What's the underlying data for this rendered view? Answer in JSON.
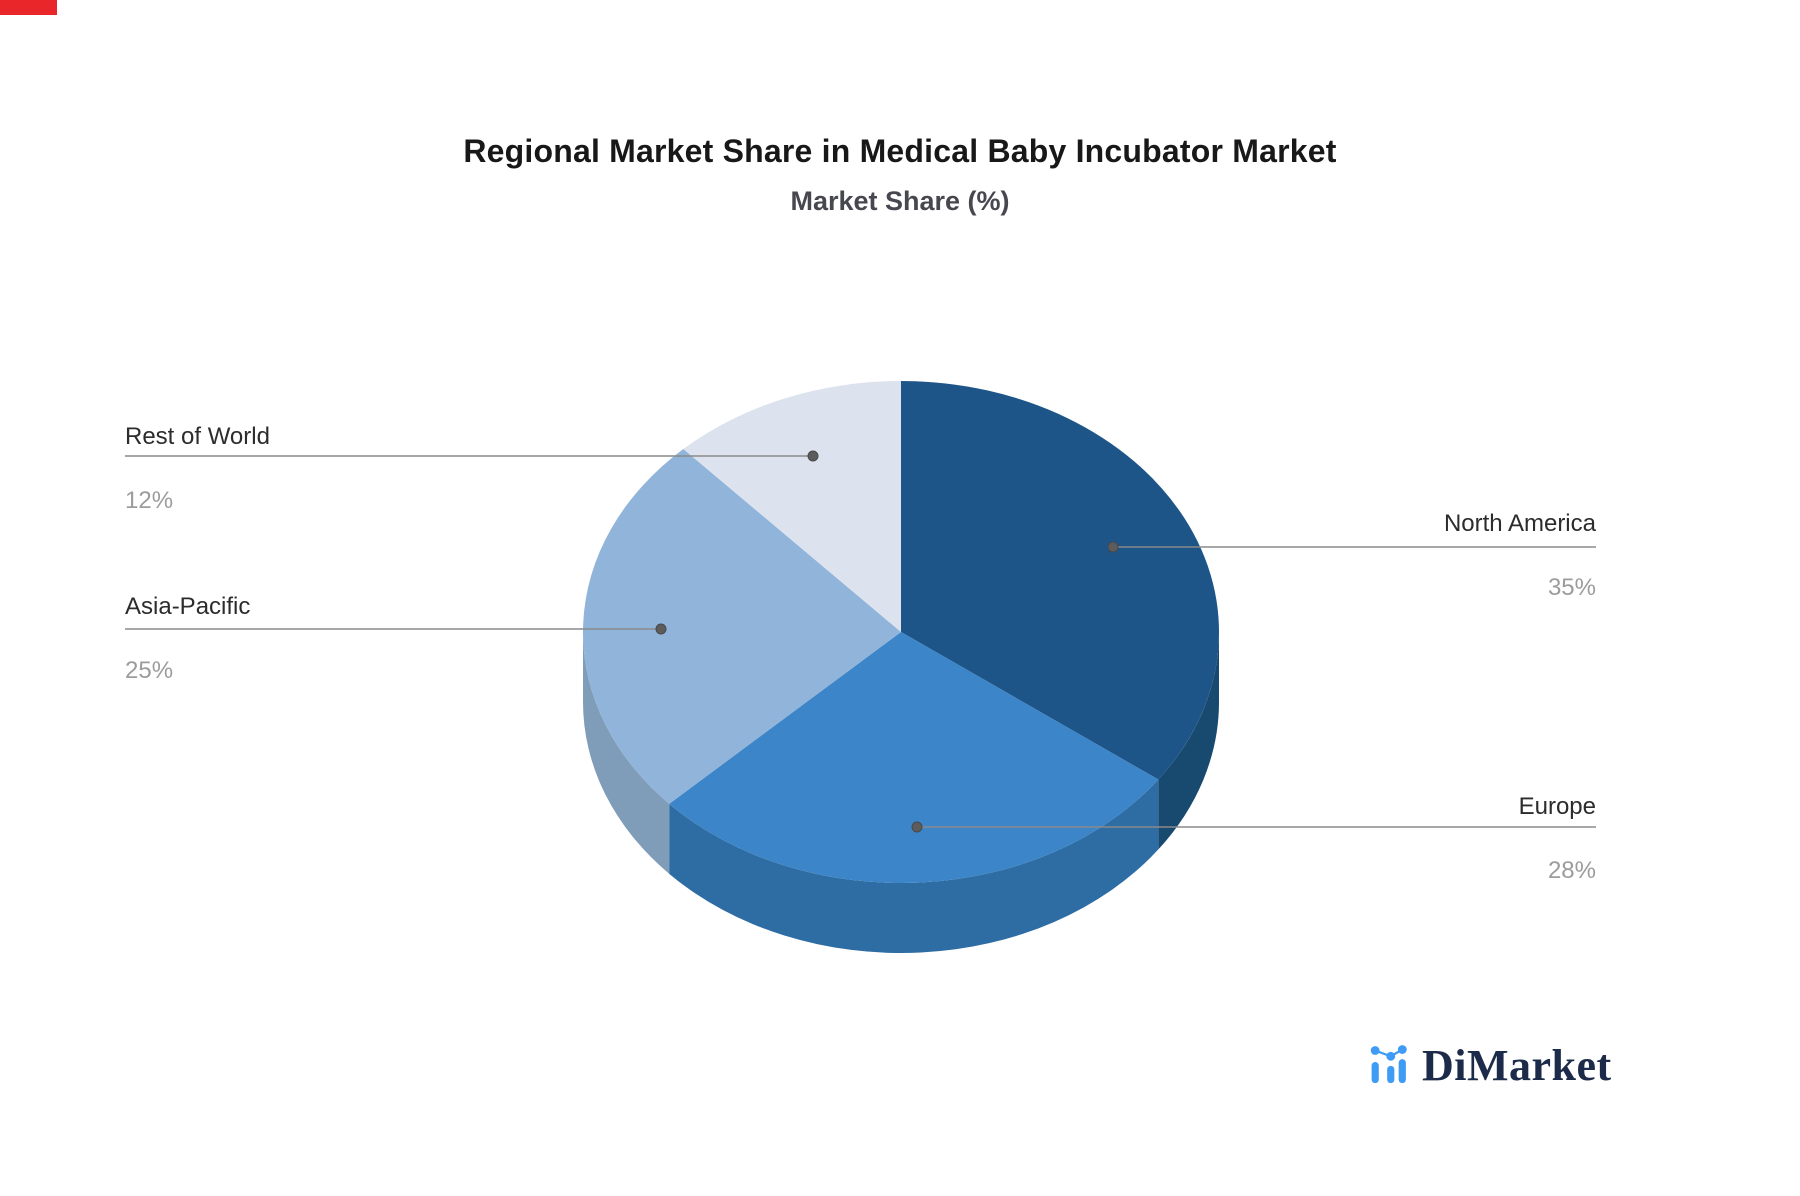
{
  "title": "Regional Market Share in Medical Baby Incubator Market",
  "subtitle": "Market Share (%)",
  "artifacts": {
    "corner_marker_color": "#e9262a"
  },
  "watermark": {
    "brand": "DiMarket",
    "icon": "bar-chart-logo-icon",
    "icon_color": "#3f9cf5",
    "text_color": "#1c2b49"
  },
  "chart_data": {
    "type": "pie",
    "style": "3d",
    "title": "Regional Market Share in Medical Baby Incubator Market",
    "subtitle": "Market Share (%)",
    "unit": "%",
    "legend_position": "callout-labels",
    "start_angle_deg": 0,
    "direction": "clockwise",
    "slices": [
      {
        "label": "North America",
        "value": 35,
        "display": "35%",
        "color": "#1d5589",
        "side_color": "#18496f"
      },
      {
        "label": "Europe",
        "value": 28,
        "display": "28%",
        "color": "#3c85c8",
        "side_color": "#2e6da4"
      },
      {
        "label": "Asia-Pacific",
        "value": 25,
        "display": "25%",
        "color": "#91b4da",
        "side_color": "#7f9cb9"
      },
      {
        "label": "Rest of World",
        "value": 12,
        "display": "12%",
        "color": "#dce3ee"
      }
    ],
    "callout_line_color": "#8a8a8a",
    "callout_dot_color": "#5c5c5c"
  }
}
